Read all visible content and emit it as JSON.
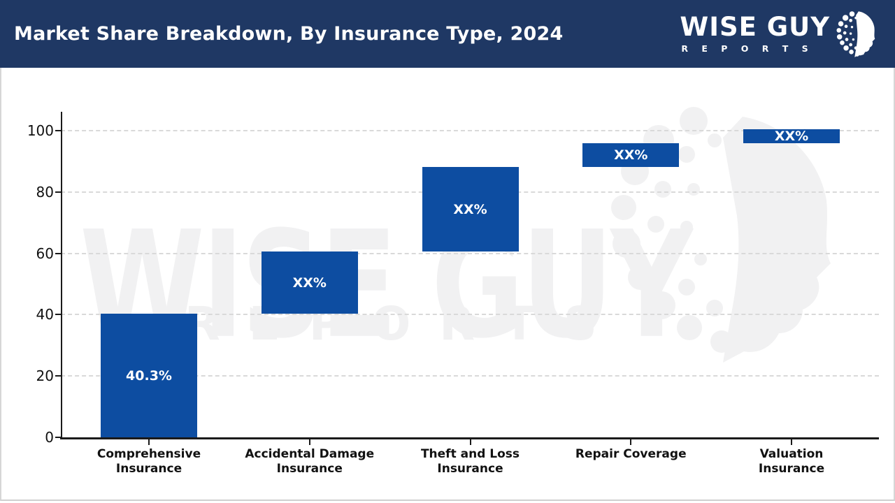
{
  "header": {
    "title": "Market Share Breakdown, By Insurance Type, 2024",
    "bg_color": "#1f3864"
  },
  "logo": {
    "name": "WISE GUY",
    "tagline": "R E P O R T S",
    "icon": "dotted-face-profile"
  },
  "watermark": {
    "line1": "WISE GUY",
    "line2": "R E P O R T S",
    "icon": "dotted-face-profile"
  },
  "colors": {
    "header_bg": "#1f3864",
    "bar": "#0d4da1",
    "grid": "#d9d9d9",
    "axis": "#1a1a1a",
    "value_label": "#ffffff",
    "watermark": "#f1f1f2",
    "card_border": "#d6d6d6"
  },
  "chart_data": {
    "type": "bar",
    "subtype": "waterfall",
    "title": "Market Share Breakdown, By Insurance Type, 2024",
    "xlabel": "",
    "ylabel": "",
    "ylim": [
      0,
      106.5
    ],
    "yticks": [
      0,
      20,
      40,
      60,
      80,
      100
    ],
    "grid": "horizontal-dashed",
    "legend": "none",
    "categories": [
      "Comprehensive Insurance",
      "Accidental Damage Insurance",
      "Theft and Loss Insurance",
      "Repair Coverage",
      "Valuation Insurance"
    ],
    "segments": [
      {
        "category": "Comprehensive Insurance",
        "label_lines": "Comprehensive\nInsurance",
        "start": 0,
        "end": 40.3,
        "value_label": "40.3%"
      },
      {
        "category": "Accidental Damage Insurance",
        "label_lines": "Accidental Damage\nInsurance",
        "start": 40.3,
        "end": 60.5,
        "value_label": "XX%"
      },
      {
        "category": "Theft and Loss Insurance",
        "label_lines": "Theft and Loss\nInsurance",
        "start": 60.5,
        "end": 88.2,
        "value_label": "XX%"
      },
      {
        "category": "Repair Coverage",
        "label_lines": "Repair Coverage",
        "start": 88.2,
        "end": 95.9,
        "value_label": "XX%"
      },
      {
        "category": "Valuation Insurance",
        "label_lines": "Valuation\nInsurance",
        "start": 95.9,
        "end": 100.5,
        "value_label": "XX%"
      }
    ],
    "bar_color": "#0d4da1",
    "value_label_color": "#ffffff"
  }
}
